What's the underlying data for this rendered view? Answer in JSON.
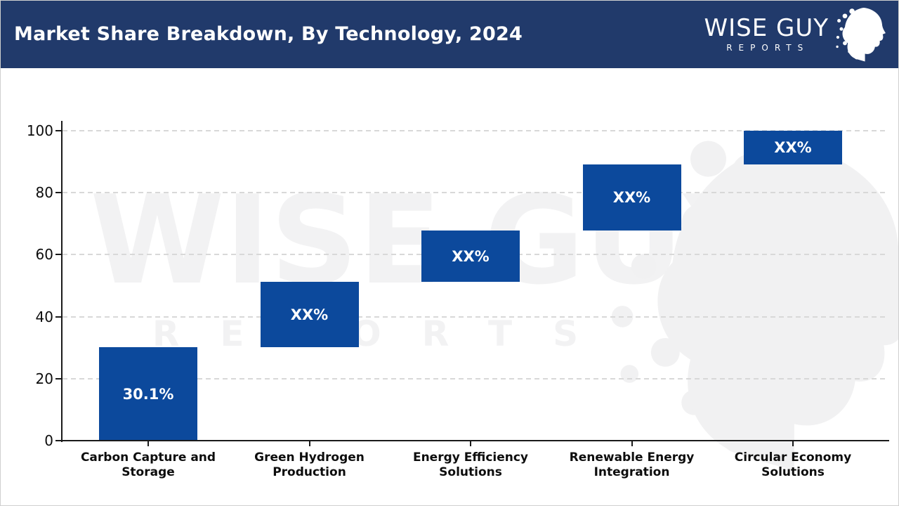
{
  "header": {
    "title": "Market Share Breakdown, By Technology, 2024",
    "logo": {
      "wordmark": "WISE GUY",
      "subtitle": "REPORTS"
    }
  },
  "watermark": {
    "wordmark": "WISE GUY",
    "subtitle": "REPORTS"
  },
  "colors": {
    "header_bg": "#213a6b",
    "bar": "#0c499c",
    "bar_label": "#ffffff",
    "grid": "#d8d8d8",
    "axis": "#1a1a1a",
    "tick_text": "#0d0d0d",
    "watermark": "#f2f2f3"
  },
  "chart_data": {
    "type": "bar",
    "subtype": "floating-waterfall",
    "title": "Market Share Breakdown, By Technology, 2024",
    "categories": [
      "Carbon Capture and Storage",
      "Green Hydrogen Production",
      "Energy Efficiency Solutions",
      "Renewable Energy Integration",
      "Circular Economy Solutions"
    ],
    "series": [
      {
        "name": "Market share (%)",
        "segments": [
          {
            "start": 0,
            "end": 30.1,
            "label": "30.1%"
          },
          {
            "start": 30.1,
            "end": 51.3,
            "label": "XX%"
          },
          {
            "start": 51.3,
            "end": 67.7,
            "label": "XX%"
          },
          {
            "start": 67.7,
            "end": 89.2,
            "label": "XX%"
          },
          {
            "start": 89.2,
            "end": 100,
            "label": "XX%"
          }
        ]
      }
    ],
    "xlabel": "",
    "ylabel": "",
    "ylim": [
      0,
      105
    ],
    "yticks": [
      0,
      20,
      40,
      60,
      80,
      100
    ],
    "grid": {
      "horizontal": true,
      "style": "dashed"
    },
    "legend": "none"
  }
}
